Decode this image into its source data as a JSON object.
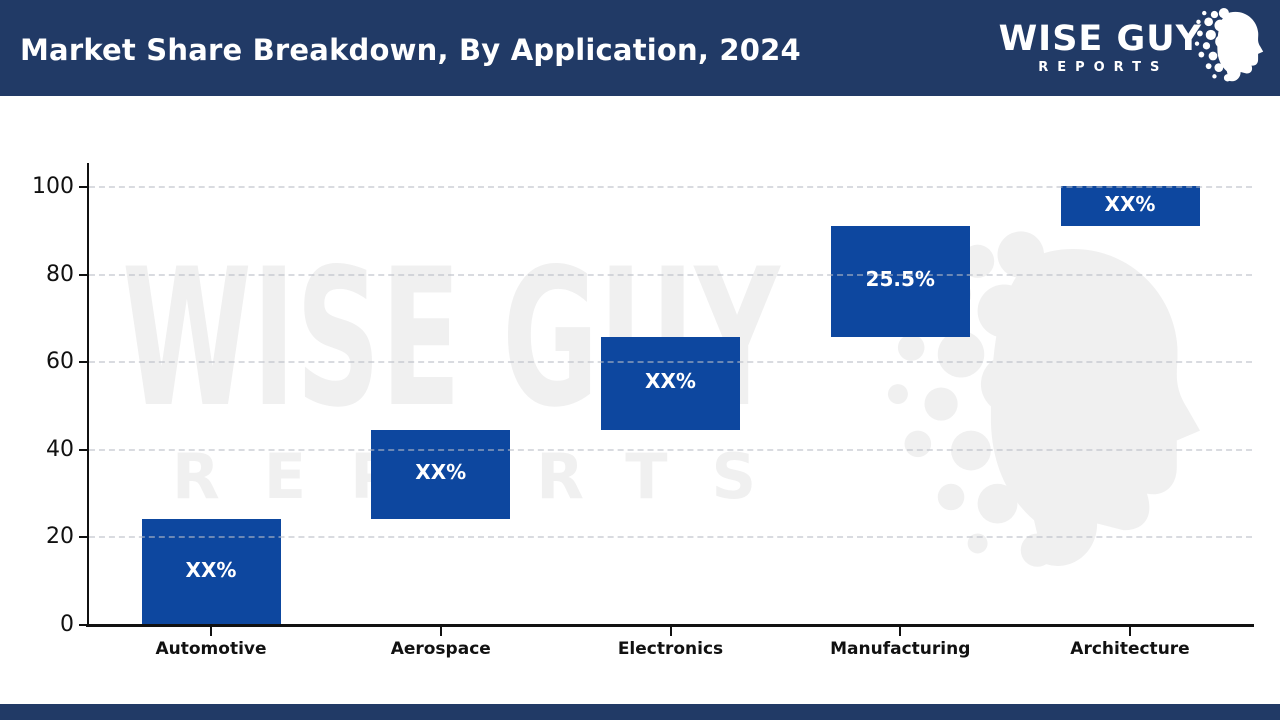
{
  "header": {
    "title": "Market Share Breakdown, By Application, 2024",
    "brand": {
      "line1": "WISE GUY",
      "line2": "REPORTS"
    }
  },
  "watermark": {
    "line1": "WISE GUY",
    "line2": "REPORTS"
  },
  "colors": {
    "header_bg": "#213a66",
    "footer_bg": "#213a66",
    "bar": "#0d479f",
    "bar_label": "#ffffff",
    "grid": "#c9cdd4",
    "axis": "#111111",
    "watermark": "#f0f0f0"
  },
  "chart_data": {
    "type": "bar",
    "subtype": "waterfall-floating-bars",
    "title": "Market Share Breakdown, By Application, 2024",
    "categories": [
      "Automotive",
      "Aerospace",
      "Electronics",
      "Manufacturing",
      "Architecture"
    ],
    "segments": [
      {
        "category": "Automotive",
        "start": 0,
        "end": 24.3,
        "label": "XX%"
      },
      {
        "category": "Aerospace",
        "start": 24.3,
        "end": 44.6,
        "label": "XX%"
      },
      {
        "category": "Electronics",
        "start": 44.6,
        "end": 65.7,
        "label": "XX%"
      },
      {
        "category": "Manufacturing",
        "start": 65.7,
        "end": 91.2,
        "label": "25.5%"
      },
      {
        "category": "Architecture",
        "start": 91.2,
        "end": 100.3,
        "label": "XX%"
      }
    ],
    "yticks": [
      0,
      20,
      40,
      60,
      80,
      100
    ],
    "ylim": [
      0,
      105
    ],
    "xlabel": "",
    "ylabel": "",
    "grid": "horizontal-dashed",
    "legend": "none"
  }
}
